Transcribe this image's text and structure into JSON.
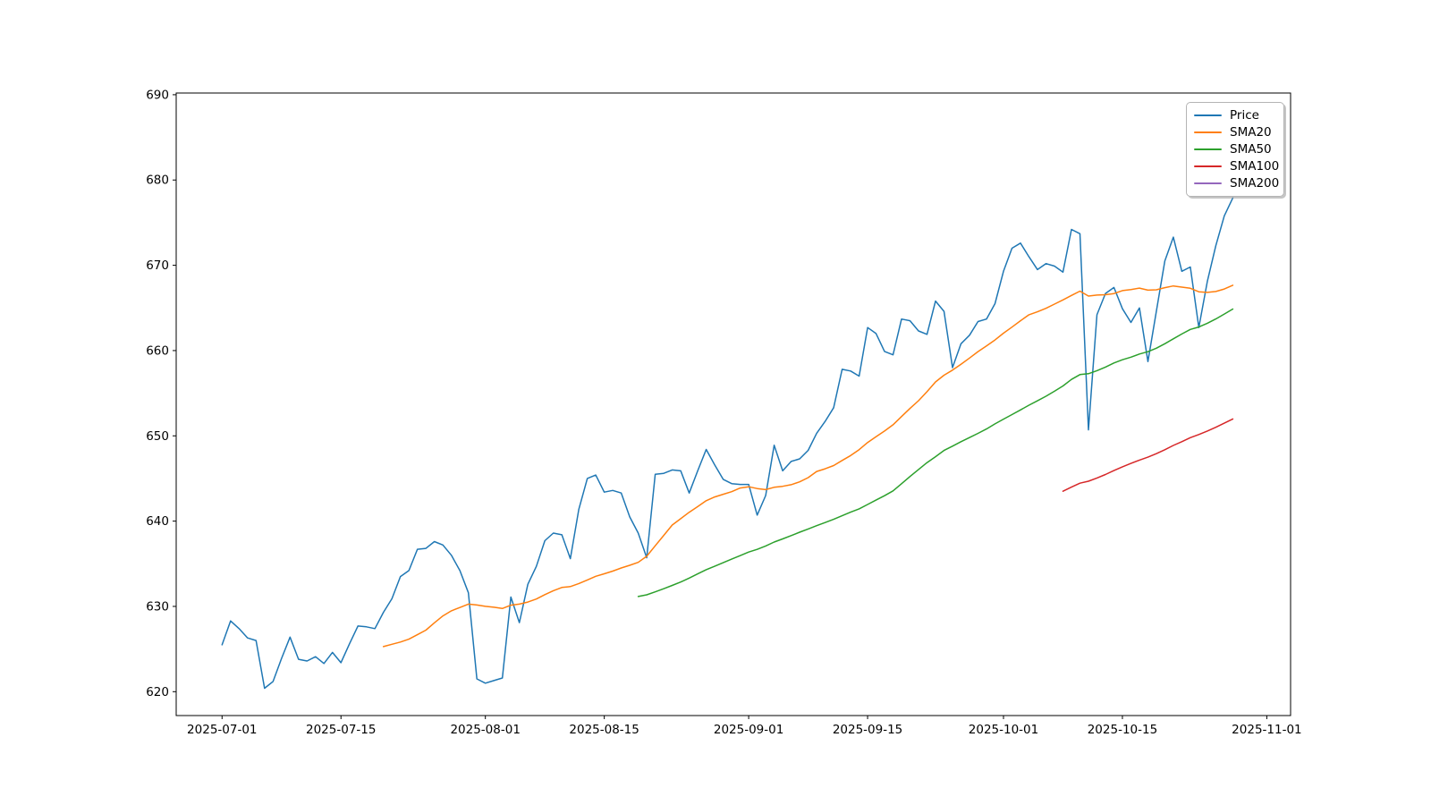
{
  "chart_data": {
    "type": "line",
    "title": "",
    "xlabel": "",
    "ylabel": "",
    "grid": false,
    "background_color": "#ffffff",
    "axis_color": "#000000",
    "tick_label_color": "#000000",
    "legend": {
      "position": "upper right"
    },
    "start_date": "2025-07-01",
    "frequency": "daily",
    "x_ticks": [
      "2025-07-01",
      "2025-07-15",
      "2025-08-01",
      "2025-08-15",
      "2025-09-01",
      "2025-09-15",
      "2025-10-01",
      "2025-10-15",
      "2025-11-01"
    ],
    "y_ticks": [
      620,
      630,
      640,
      650,
      660,
      670,
      680,
      690
    ],
    "ylim": [
      617.2,
      690.2
    ],
    "xlim_days_from_start": [
      -5.4,
      125.8
    ],
    "series": [
      {
        "name": "Price",
        "color": "#1f77b4",
        "window": 1
      },
      {
        "name": "SMA20",
        "color": "#ff7f0e",
        "window": 20
      },
      {
        "name": "SMA50",
        "color": "#2ca02c",
        "window": 50
      },
      {
        "name": "SMA100",
        "color": "#d62728",
        "window": 100
      },
      {
        "name": "SMA200",
        "color": "#9467bd",
        "window": 200
      }
    ],
    "price": [
      625.5,
      628.3,
      627.4,
      626.3,
      626.0,
      620.4,
      621.2,
      623.9,
      626.4,
      623.8,
      623.6,
      624.1,
      623.3,
      624.6,
      623.4,
      625.6,
      627.7,
      627.6,
      627.4,
      629.3,
      630.9,
      633.5,
      634.2,
      636.7,
      636.8,
      637.6,
      637.2,
      636.0,
      634.2,
      631.6,
      621.5,
      621.0,
      621.3,
      621.6,
      631.1,
      628.1,
      632.6,
      634.7,
      637.7,
      638.6,
      638.4,
      635.6,
      641.4,
      645.0,
      645.4,
      643.4,
      643.6,
      643.3,
      640.5,
      638.6,
      635.7,
      645.5,
      645.6,
      646.0,
      645.9,
      643.3,
      645.9,
      648.4,
      646.6,
      644.9,
      644.4,
      644.3,
      644.3,
      640.7,
      643.0,
      648.9,
      645.9,
      647.0,
      647.3,
      648.3,
      650.3,
      651.7,
      653.3,
      657.8,
      657.6,
      657.0,
      662.7,
      662.0,
      659.9,
      659.5,
      663.7,
      663.5,
      662.3,
      661.9,
      665.8,
      664.6,
      658.0,
      660.8,
      661.8,
      663.4,
      663.7,
      665.5,
      669.3,
      672.0,
      672.6,
      671.0,
      669.5,
      670.2,
      669.9,
      669.2,
      674.2,
      673.7,
      650.7,
      664.2,
      666.7,
      667.4,
      664.9,
      663.3,
      665.0,
      658.7,
      664.6,
      670.5,
      673.3,
      669.3,
      669.8,
      662.7,
      668.1,
      672.3,
      675.8,
      677.9
    ]
  }
}
